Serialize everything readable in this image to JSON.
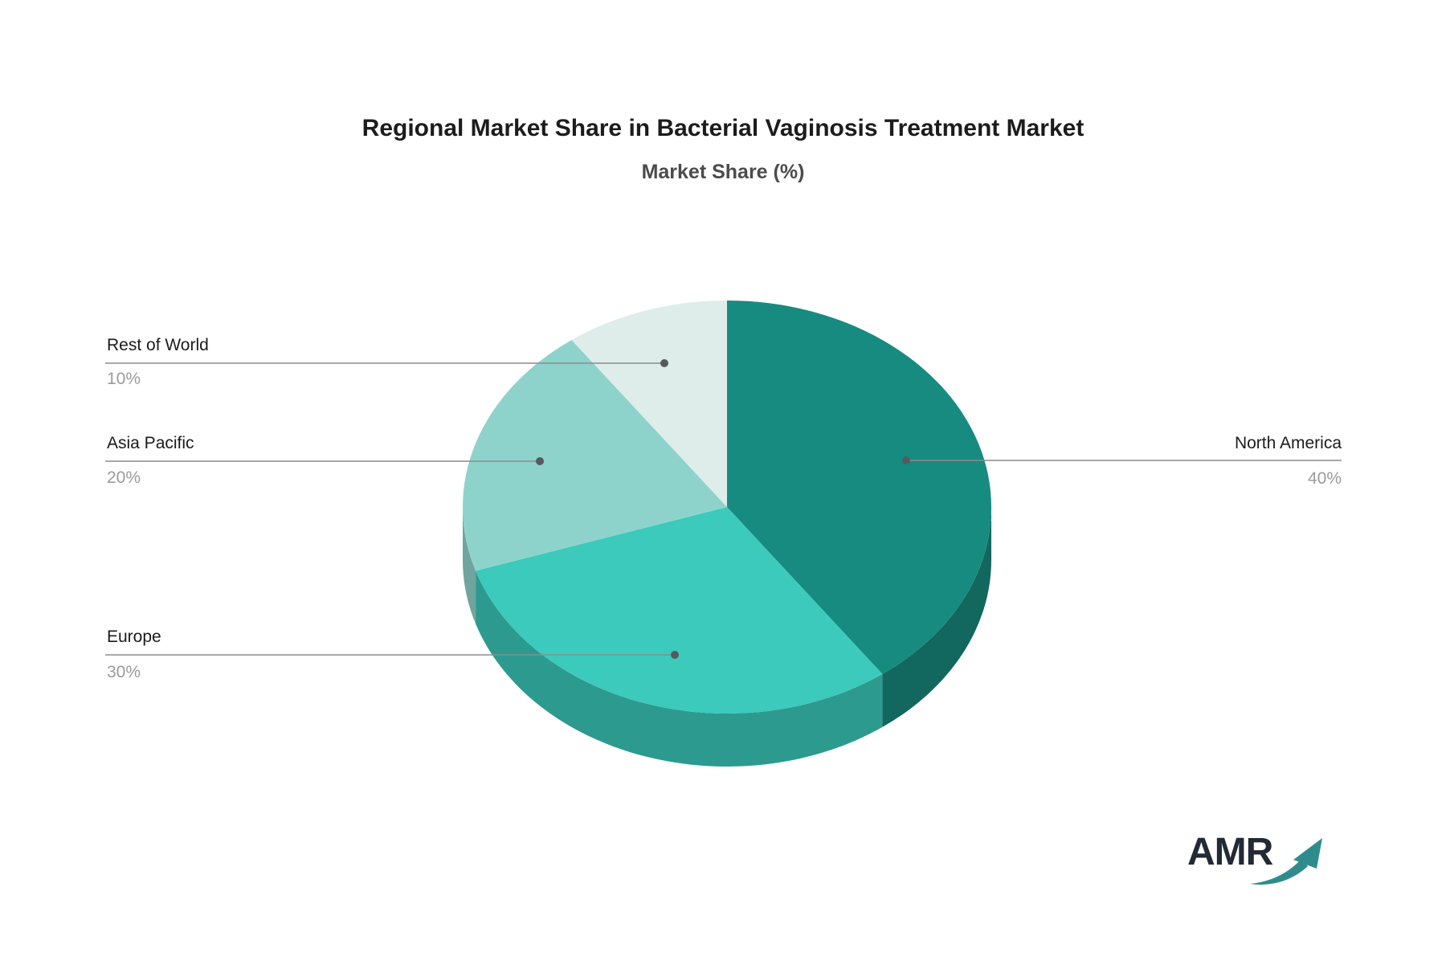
{
  "header": {
    "title": "Regional Market Share in Bacterial Vaginosis Treatment Market",
    "subtitle": "Market Share (%)"
  },
  "chart_data": {
    "type": "pie",
    "title": "Regional Market Share in Bacterial Vaginosis Treatment Market",
    "subtitle": "Market Share (%)",
    "unit": "%",
    "effect": "3d",
    "start_angle": "12-o'clock",
    "direction": "clockwise",
    "legend": "none",
    "labels": [
      "North America",
      "Europe",
      "Asia Pacific",
      "Rest of World"
    ],
    "values": [
      40,
      30,
      20,
      10
    ],
    "percent_labels": [
      "40%",
      "30%",
      "20%",
      "10%"
    ],
    "slice_colors": [
      "#178B80",
      "#3BCABC",
      "#8ED3CB",
      "#DEEDEA"
    ],
    "slice_side_colors": [
      "#12675E",
      "#2D9A8F",
      "#6FA59E",
      "#BFDCD7"
    ],
    "leader_line_color": "#8C8C8C",
    "leader_dot_color": "#565A5C",
    "label_color": "#1B1B1B",
    "percent_color": "#9B9B9B"
  },
  "logo": {
    "text": "AMR",
    "text_color": "#212A35",
    "arrow_color": "#2F8C8C"
  }
}
